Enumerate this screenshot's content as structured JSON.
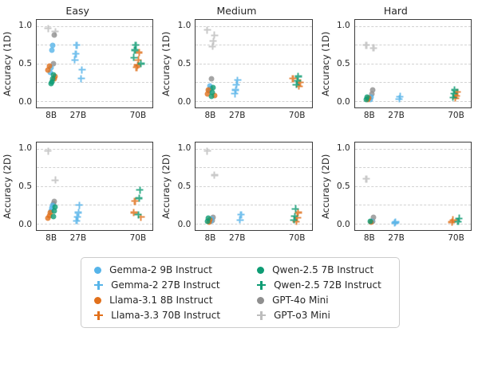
{
  "chart_data": {
    "type": "scatter",
    "layout": "2 rows x 3 columns of subplots; shared marker legend below",
    "x_axis": {
      "tick_labels": [
        "8B",
        "27B",
        "70B"
      ],
      "scale": "model parameter count, linear",
      "positions": {
        "8B": 0.13,
        "27B": 0.36,
        "70B": 0.87
      }
    },
    "y_axis": {
      "tick_labels": [
        "1.0",
        "0.5",
        "0.0"
      ],
      "range": [
        0.0,
        1.0
      ],
      "gridlines": [
        0.0,
        0.25,
        0.5,
        0.75,
        1.0
      ],
      "grid_style": "dashed horizontal"
    },
    "series_defs": {
      "g9": {
        "label": "Gemma-2 9B Instruct",
        "color": "#56B4E9",
        "marker": "circle",
        "x": "8B"
      },
      "g27": {
        "label": "Gemma-2 27B Instruct",
        "color": "#56B4E9",
        "marker": "plus",
        "x": "27B"
      },
      "l8": {
        "label": "Llama-3.1 8B Instruct",
        "color": "#E1701B",
        "marker": "circle",
        "x": "8B"
      },
      "l70": {
        "label": "Llama-3.3 70B Instruct",
        "color": "#E1701B",
        "marker": "plus",
        "x": "70B"
      },
      "q7": {
        "label": "Qwen-2.5 7B Instruct",
        "color": "#0E9C74",
        "marker": "circle",
        "x": "8B"
      },
      "q72": {
        "label": "Qwen-2.5 72B Instruct",
        "color": "#0E9C74",
        "marker": "plus",
        "x": "70B"
      },
      "gpt4o": {
        "label": "GPT-4o Mini",
        "color": "#8F8F8F",
        "marker": "circle",
        "x": "8B"
      },
      "gpto3": {
        "label": "GPT-o3 Mini",
        "color": "#BDBDBD",
        "marker": "plus",
        "x": "8B"
      }
    },
    "subplots": [
      {
        "title": "Easy",
        "ylabel": "Accuracy (1D)",
        "points": [
          [
            "gpto3",
            0.97
          ],
          [
            "gpto3",
            0.93
          ],
          [
            "gpt4o",
            0.88
          ],
          [
            "gpt4o",
            0.5
          ],
          [
            "g9",
            0.75
          ],
          [
            "g9",
            0.68
          ],
          [
            "g9",
            0.45
          ],
          [
            "g9",
            0.38
          ],
          [
            "l8",
            0.47
          ],
          [
            "l8",
            0.42
          ],
          [
            "l8",
            0.33
          ],
          [
            "l8",
            0.3
          ],
          [
            "q7",
            0.35
          ],
          [
            "q7",
            0.3
          ],
          [
            "q7",
            0.26
          ],
          [
            "q7",
            0.23
          ],
          [
            "g27",
            0.75
          ],
          [
            "g27",
            0.63
          ],
          [
            "g27",
            0.55
          ],
          [
            "g27",
            0.42
          ],
          [
            "g27",
            0.3
          ],
          [
            "l70",
            0.65
          ],
          [
            "l70",
            0.55
          ],
          [
            "l70",
            0.48
          ],
          [
            "l70",
            0.45
          ],
          [
            "q72",
            0.75
          ],
          [
            "q72",
            0.68
          ],
          [
            "q72",
            0.58
          ],
          [
            "q72",
            0.5
          ]
        ]
      },
      {
        "title": "Medium",
        "ylabel": "Accuracy (1D)",
        "points": [
          [
            "gpto3",
            0.95
          ],
          [
            "gpto3",
            0.88
          ],
          [
            "gpto3",
            0.8
          ],
          [
            "gpto3",
            0.73
          ],
          [
            "gpt4o",
            0.3
          ],
          [
            "gpt4o",
            0.17
          ],
          [
            "g9",
            0.2
          ],
          [
            "g9",
            0.14
          ],
          [
            "l8",
            0.15
          ],
          [
            "l8",
            0.1
          ],
          [
            "l8",
            0.07
          ],
          [
            "q7",
            0.18
          ],
          [
            "q7",
            0.12
          ],
          [
            "q7",
            0.06
          ],
          [
            "g27",
            0.28
          ],
          [
            "g27",
            0.22
          ],
          [
            "g27",
            0.15
          ],
          [
            "g27",
            0.1
          ],
          [
            "l70",
            0.3
          ],
          [
            "l70",
            0.25
          ],
          [
            "l70",
            0.2
          ],
          [
            "q72",
            0.33
          ],
          [
            "q72",
            0.27
          ],
          [
            "q72",
            0.22
          ]
        ]
      },
      {
        "title": "Hard",
        "ylabel": "Accuracy (1D)",
        "points": [
          [
            "gpto3",
            0.75
          ],
          [
            "gpto3",
            0.71
          ],
          [
            "gpt4o",
            0.15
          ],
          [
            "gpt4o",
            0.1
          ],
          [
            "g9",
            0.05
          ],
          [
            "g9",
            0.02
          ],
          [
            "l8",
            0.04
          ],
          [
            "l8",
            0.02
          ],
          [
            "q7",
            0.05
          ],
          [
            "q7",
            0.02
          ],
          [
            "g27",
            0.06
          ],
          [
            "g27",
            0.03
          ],
          [
            "l70",
            0.12
          ],
          [
            "l70",
            0.07
          ],
          [
            "l70",
            0.04
          ],
          [
            "q72",
            0.15
          ],
          [
            "q72",
            0.1
          ],
          [
            "q72",
            0.05
          ]
        ]
      },
      {
        "title": "Easy",
        "ylabel": "Accuracy (2D)",
        "points": [
          [
            "gpto3",
            0.97
          ],
          [
            "gpto3",
            0.58
          ],
          [
            "gpt4o",
            0.3
          ],
          [
            "gpt4o",
            0.27
          ],
          [
            "g9",
            0.25
          ],
          [
            "g9",
            0.21
          ],
          [
            "g9",
            0.17
          ],
          [
            "l8",
            0.15
          ],
          [
            "l8",
            0.11
          ],
          [
            "l8",
            0.07
          ],
          [
            "q7",
            0.22
          ],
          [
            "q7",
            0.17
          ],
          [
            "q7",
            0.1
          ],
          [
            "g27",
            0.25
          ],
          [
            "g27",
            0.15
          ],
          [
            "g27",
            0.09
          ],
          [
            "g27",
            0.04
          ],
          [
            "l70",
            0.3
          ],
          [
            "l70",
            0.15
          ],
          [
            "l70",
            0.09
          ],
          [
            "q72",
            0.45
          ],
          [
            "q72",
            0.34
          ],
          [
            "q72",
            0.12
          ]
        ]
      },
      {
        "title": "Medium",
        "ylabel": "Accuracy (2D)",
        "points": [
          [
            "gpto3",
            0.97
          ],
          [
            "gpto3",
            0.65
          ],
          [
            "gpt4o",
            0.08
          ],
          [
            "gpt4o",
            0.04
          ],
          [
            "g9",
            0.06
          ],
          [
            "g9",
            0.03
          ],
          [
            "l8",
            0.05
          ],
          [
            "l8",
            0.02
          ],
          [
            "q7",
            0.07
          ],
          [
            "q7",
            0.03
          ],
          [
            "g27",
            0.12
          ],
          [
            "g27",
            0.05
          ],
          [
            "l70",
            0.15
          ],
          [
            "l70",
            0.08
          ],
          [
            "l70",
            0.03
          ],
          [
            "q72",
            0.2
          ],
          [
            "q72",
            0.1
          ],
          [
            "q72",
            0.05
          ]
        ]
      },
      {
        "title": "Hard",
        "ylabel": "Accuracy (2D)",
        "points": [
          [
            "gpto3",
            0.6
          ],
          [
            "gpt4o",
            0.08
          ],
          [
            "gpt4o",
            0.03
          ],
          [
            "g9",
            0.03
          ],
          [
            "l8",
            0.02
          ],
          [
            "q7",
            0.03
          ],
          [
            "g27",
            0.02
          ],
          [
            "g27",
            0.01
          ],
          [
            "l70",
            0.05
          ],
          [
            "l70",
            0.02
          ],
          [
            "q72",
            0.07
          ],
          [
            "q72",
            0.03
          ]
        ]
      }
    ]
  },
  "legend": {
    "items": [
      {
        "label": "Gemma-2 9B Instruct",
        "color": "#56B4E9",
        "marker": "circle"
      },
      {
        "label": "Gemma-2 27B Instruct",
        "color": "#56B4E9",
        "marker": "plus"
      },
      {
        "label": "Llama-3.1 8B Instruct",
        "color": "#E1701B",
        "marker": "circle"
      },
      {
        "label": "Llama-3.3 70B Instruct",
        "color": "#E1701B",
        "marker": "plus"
      },
      {
        "label": "Qwen-2.5 7B Instruct",
        "color": "#0E9C74",
        "marker": "circle"
      },
      {
        "label": "Qwen-2.5 72B Instruct",
        "color": "#0E9C74",
        "marker": "plus"
      },
      {
        "label": "GPT-4o Mini",
        "color": "#8F8F8F",
        "marker": "circle"
      },
      {
        "label": "GPT-o3 Mini",
        "color": "#BDBDBD",
        "marker": "plus"
      }
    ]
  }
}
